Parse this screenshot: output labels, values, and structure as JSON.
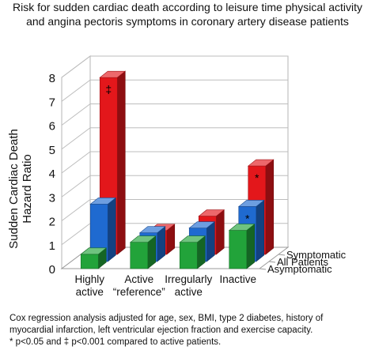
{
  "title_lines": [
    "Risk for sudden cardiac death according to leisure time physical activity",
    "and angina pectoris symptoms in coronary artery disease patients"
  ],
  "footnote_lines": [
    "Cox regression analysis adjusted for age, sex, BMI, type 2 diabetes, history of",
    "myocardial infarction, left ventricular ejection fraction and exercise capacity.",
    "* p<0.05 and ‡ p<0.001 compared to active patients."
  ],
  "chart_data": {
    "type": "bar",
    "subtype": "3d-grouped",
    "ylabel": [
      "Sudden Cardiac Death",
      "Hazard Ratio"
    ],
    "ylim": [
      0,
      8
    ],
    "yticks": [
      "0",
      "1",
      "2",
      "3",
      "4",
      "5",
      "6",
      "7",
      "8"
    ],
    "grid": true,
    "categories": [
      "Highly active",
      "Active “reference”",
      "Irregularly active",
      "Inactive"
    ],
    "category_labels": [
      [
        "Highly",
        "active"
      ],
      [
        "Active",
        "“reference”"
      ],
      [
        "Irregularly",
        "active"
      ],
      [
        "Inactive"
      ]
    ],
    "series": [
      {
        "name": "Asymptomatic",
        "color": "#22a33a",
        "values": [
          0.6,
          1.1,
          1.1,
          1.6
        ],
        "annotations": [
          "",
          "",
          "",
          ""
        ]
      },
      {
        "name": "All Patients",
        "color": "#1f6ad0",
        "values": [
          2.4,
          1.2,
          1.4,
          2.3
        ],
        "annotations": [
          "",
          "",
          "",
          "*"
        ]
      },
      {
        "name": "Symptomatic",
        "color": "#e3171b",
        "values": [
          7.4,
          1.0,
          1.6,
          3.7
        ],
        "annotations": [
          "‡",
          "",
          "",
          "*"
        ]
      }
    ]
  }
}
